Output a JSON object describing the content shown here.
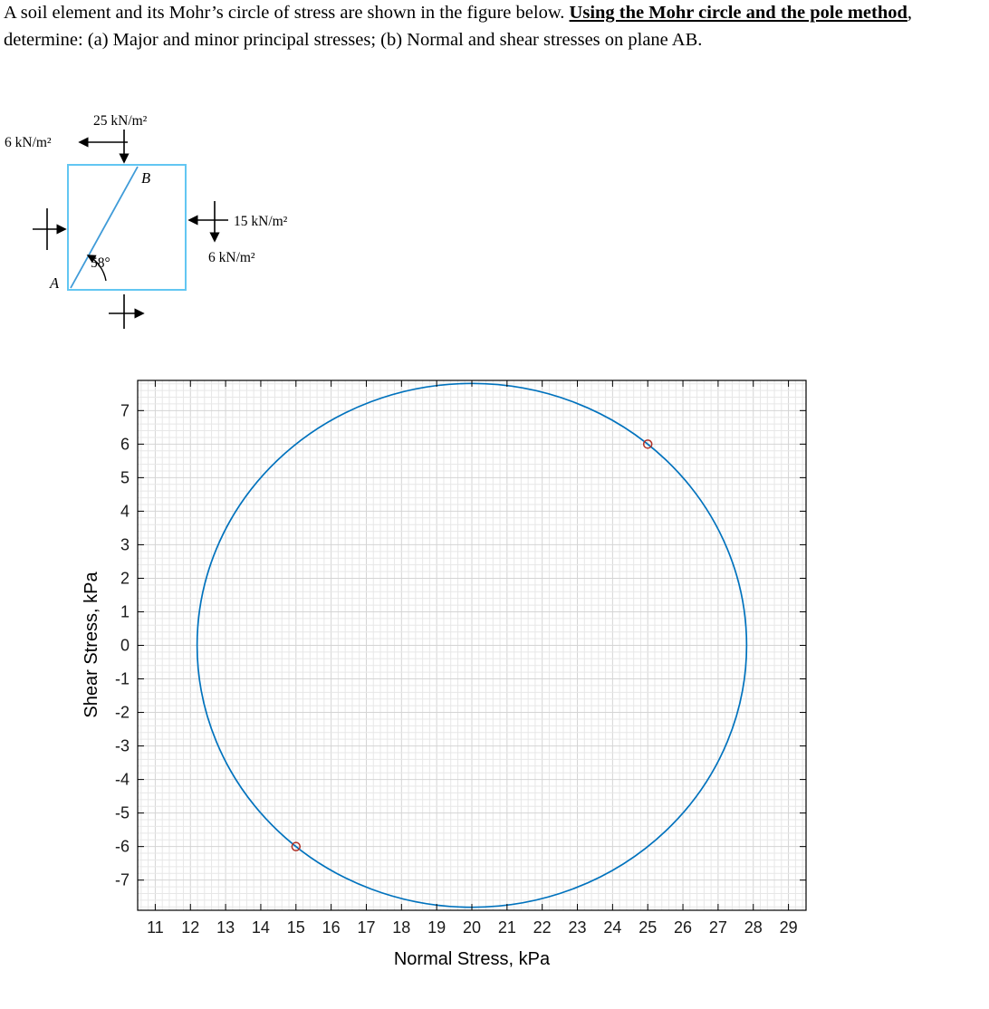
{
  "problem": {
    "text_before": "A soil element and its Mohr’s circle of stress are shown in the figure below. ",
    "text_emphasis": "Using the Mohr circle and the pole method",
    "text_after": ", determine:  (a) Major and minor principal stresses; (b) Normal and shear stresses on plane AB."
  },
  "diagram": {
    "top_normal_stress": "25 kN/m²",
    "top_shear_stress": "6 kN/m²",
    "right_normal_stress": "15 kN/m²",
    "right_shear_stress": "6 kN/m²",
    "angle_label": "58°",
    "point_a": "A",
    "point_b": "B",
    "square_color": "#62c6f2",
    "plane_color": "#3f9bd8"
  },
  "chart_data": {
    "type": "scatter",
    "title": "",
    "xlabel": "Normal Stress, kPa",
    "ylabel": "Shear Stress, kPa",
    "xlim": [
      10.5,
      29.5
    ],
    "ylim": [
      -7.9,
      7.9
    ],
    "xticks": [
      11,
      12,
      13,
      14,
      15,
      16,
      17,
      18,
      19,
      20,
      21,
      22,
      23,
      24,
      25,
      26,
      27,
      28,
      29
    ],
    "yticks": [
      -7,
      -6,
      -5,
      -4,
      -3,
      -2,
      -1,
      0,
      1,
      2,
      3,
      4,
      5,
      6,
      7
    ],
    "grid": true,
    "minor_grid_step": 0.2,
    "legend": "none",
    "circle": {
      "center_x": 20,
      "center_y": 0,
      "radius": 7.81,
      "color": "#0072bd"
    },
    "points": [
      {
        "x": 25,
        "y": 6
      },
      {
        "x": 15,
        "y": -6
      }
    ],
    "point_color": "#b03024"
  }
}
